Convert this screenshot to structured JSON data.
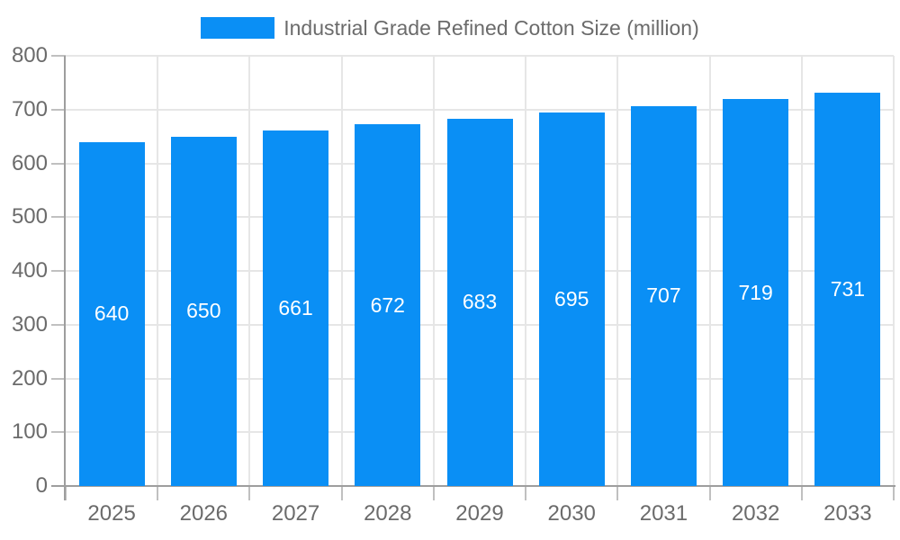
{
  "chart_data": {
    "type": "bar",
    "title": "Industrial Grade Refined Cotton Size (million)",
    "legend_position": "top",
    "categories": [
      "2025",
      "2026",
      "2027",
      "2028",
      "2029",
      "2030",
      "2031",
      "2032",
      "2033"
    ],
    "series": [
      {
        "name": "Industrial Grade Refined Cotton Size (million)",
        "values": [
          640,
          650,
          661,
          672,
          683,
          695,
          707,
          719,
          731
        ]
      }
    ],
    "xlabel": "",
    "ylabel": "",
    "ylim": [
      0,
      800
    ],
    "ytick_interval": 100,
    "ytick_labels": [
      "0",
      "100",
      "200",
      "300",
      "400",
      "500",
      "600",
      "700",
      "800"
    ],
    "grid": true,
    "value_labels": "inside-center"
  },
  "colors": {
    "bar": "#0a8ff5",
    "value_label": "#ffffff",
    "axis_text": "#6b6b6b",
    "grid_line": "#e6e6e6",
    "axis_line": "#9e9e9e",
    "tick_line": "#c0c0c0",
    "background": "#ffffff"
  }
}
